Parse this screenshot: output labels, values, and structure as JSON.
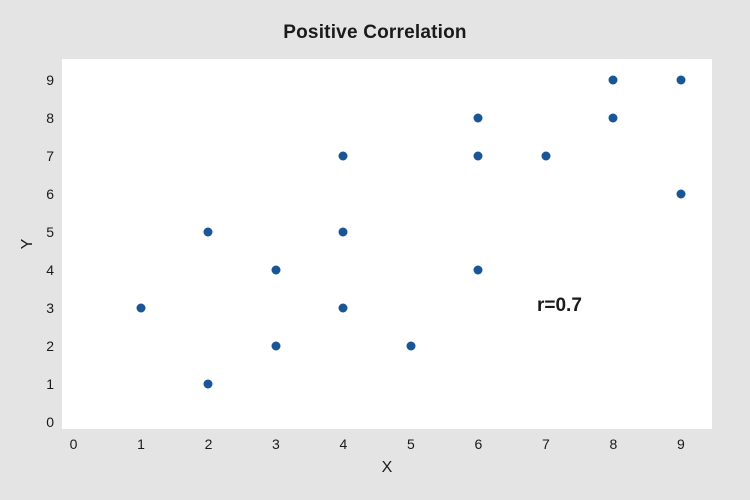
{
  "chart_data": {
    "type": "scatter",
    "title": "Positive Correlation",
    "xlabel": "X",
    "ylabel": "Y",
    "annotation": {
      "text": "r=0.7",
      "x": 7.2,
      "y": 3.05
    },
    "points": [
      [
        1,
        3
      ],
      [
        2,
        1
      ],
      [
        2,
        5
      ],
      [
        3,
        2
      ],
      [
        3,
        4
      ],
      [
        4,
        3
      ],
      [
        4,
        5
      ],
      [
        4,
        7
      ],
      [
        5,
        2
      ],
      [
        6,
        4
      ],
      [
        6,
        7
      ],
      [
        6,
        8
      ],
      [
        7,
        7
      ],
      [
        8,
        8
      ],
      [
        8,
        9
      ],
      [
        9,
        6
      ],
      [
        9,
        9
      ]
    ],
    "xticks": [
      0,
      1,
      2,
      3,
      4,
      5,
      6,
      7,
      8,
      9
    ],
    "yticks": [
      0,
      1,
      2,
      3,
      4,
      5,
      6,
      7,
      8,
      9
    ],
    "xlim": [
      -0.17,
      9.46
    ],
    "ylim": [
      -0.18,
      9.55
    ],
    "grid": false,
    "legend": null,
    "colors": {
      "point": "#1A5697",
      "background": "#E4E4E4",
      "plot_background": "#FFFFFF",
      "text": "#1A1A1A"
    }
  }
}
